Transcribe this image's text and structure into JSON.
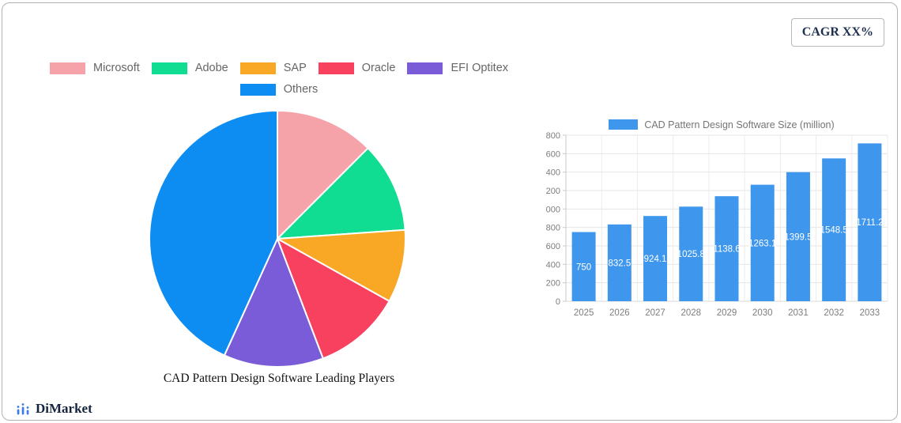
{
  "card": {
    "cagr_label": "CAGR XX%"
  },
  "brand": {
    "name": "DiMarket",
    "icon": "bar-chart-logo-icon",
    "icon_color": "#3b7de2",
    "text_color": "#15233f"
  },
  "chart_data": [
    {
      "type": "pie",
      "title": "CAD Pattern Design Software Leading Players",
      "labels": [
        "Microsoft",
        "Adobe",
        "SAP",
        "Oracle",
        "EFI Optitex",
        "Others"
      ],
      "values": [
        12.5,
        11.4,
        9.2,
        11.1,
        12.6,
        43.2
      ],
      "colors": [
        "#f5a3a9",
        "#10dd92",
        "#f9a826",
        "#f8405f",
        "#7a5cd8",
        "#0d8cf2"
      ],
      "legend_position": "top",
      "legend_rows": [
        5,
        1
      ],
      "start_angle_deg": 0,
      "direction": "clockwise",
      "slice_border_color": "#ffffff"
    },
    {
      "type": "bar",
      "legend": "CAD Pattern Design Software Size (million)",
      "categories": [
        "2025",
        "2026",
        "2027",
        "2028",
        "2029",
        "2030",
        "2031",
        "2032",
        "2033"
      ],
      "values": [
        750,
        832.5,
        924.1,
        1025.8,
        1138.6,
        1263.1,
        1399.5,
        1548.5,
        1711.2
      ],
      "bar_color": "#3e96ed",
      "value_label_color": "#ffffff",
      "value_label_position": "inside-center",
      "ylim": [
        0,
        1800
      ],
      "ytick_step": 200,
      "grid": true,
      "tick_color": "#7d7d7d"
    }
  ]
}
